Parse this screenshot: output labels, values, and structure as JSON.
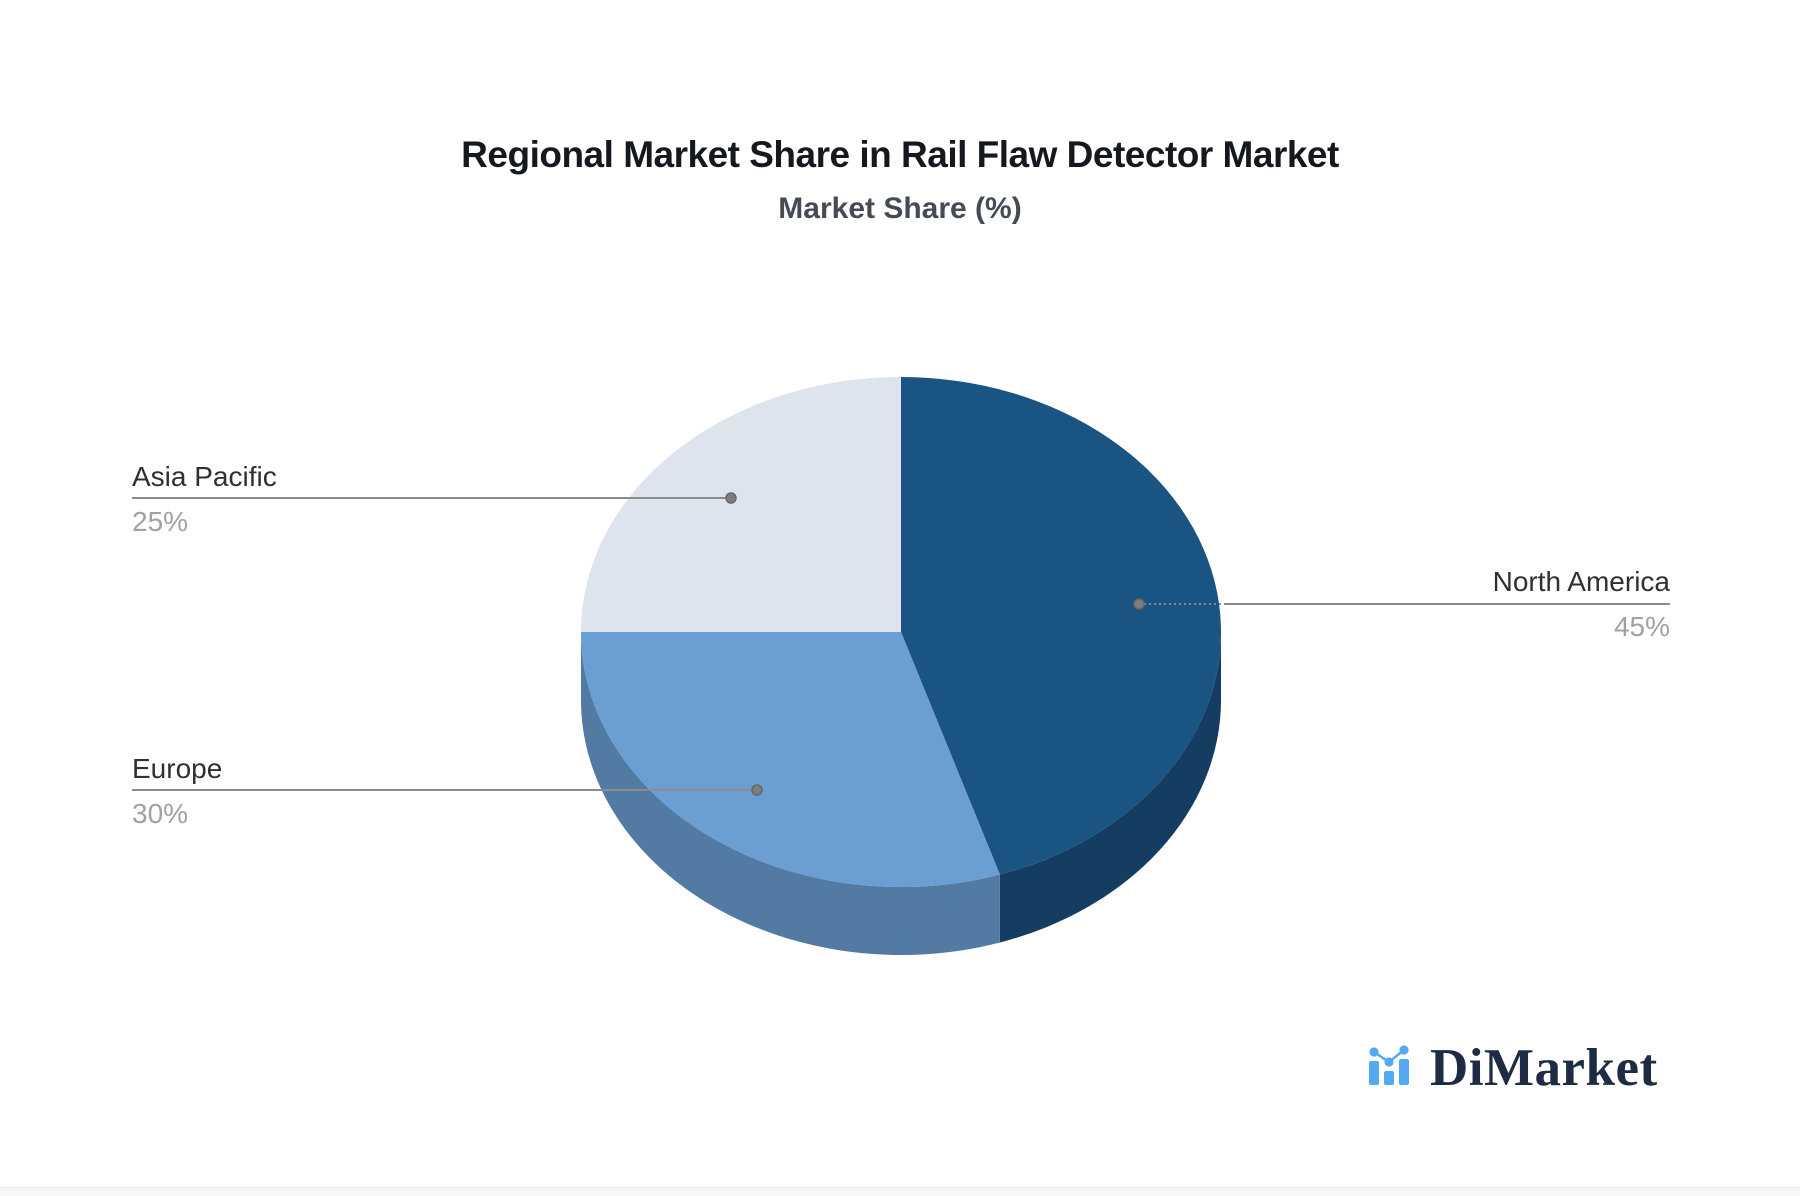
{
  "header": {
    "title": "Regional Market Share in Rail Flaw Detector Market",
    "subtitle": "Market Share (%)"
  },
  "chart_data": {
    "type": "pie",
    "style": "3d",
    "title": "Regional Market Share in Rail Flaw Detector Market",
    "subtitle": "Market Share (%)",
    "unit": "%",
    "start_angle_deg": 0,
    "direction": "clockwise",
    "legend": "none",
    "label_style": "callout-lines",
    "slices": [
      {
        "id": "north-america",
        "label": "North America",
        "value": 45,
        "display": "45%",
        "color": "#1a5483",
        "side_color": "#143d61"
      },
      {
        "id": "europe",
        "label": "Europe",
        "value": 30,
        "display": "30%",
        "color": "#6b9ed2",
        "side_color": "#527aa3"
      },
      {
        "id": "asia-pacific",
        "label": "Asia Pacific",
        "value": 25,
        "display": "25%",
        "color": "#dde4ee",
        "side_color": "#b9c4d6"
      }
    ]
  },
  "brand": {
    "name": "DiMarket",
    "icon": "bar-line-chart-logo-icon",
    "icon_color": "#55a9f2",
    "text_color": "#1d2b44"
  }
}
